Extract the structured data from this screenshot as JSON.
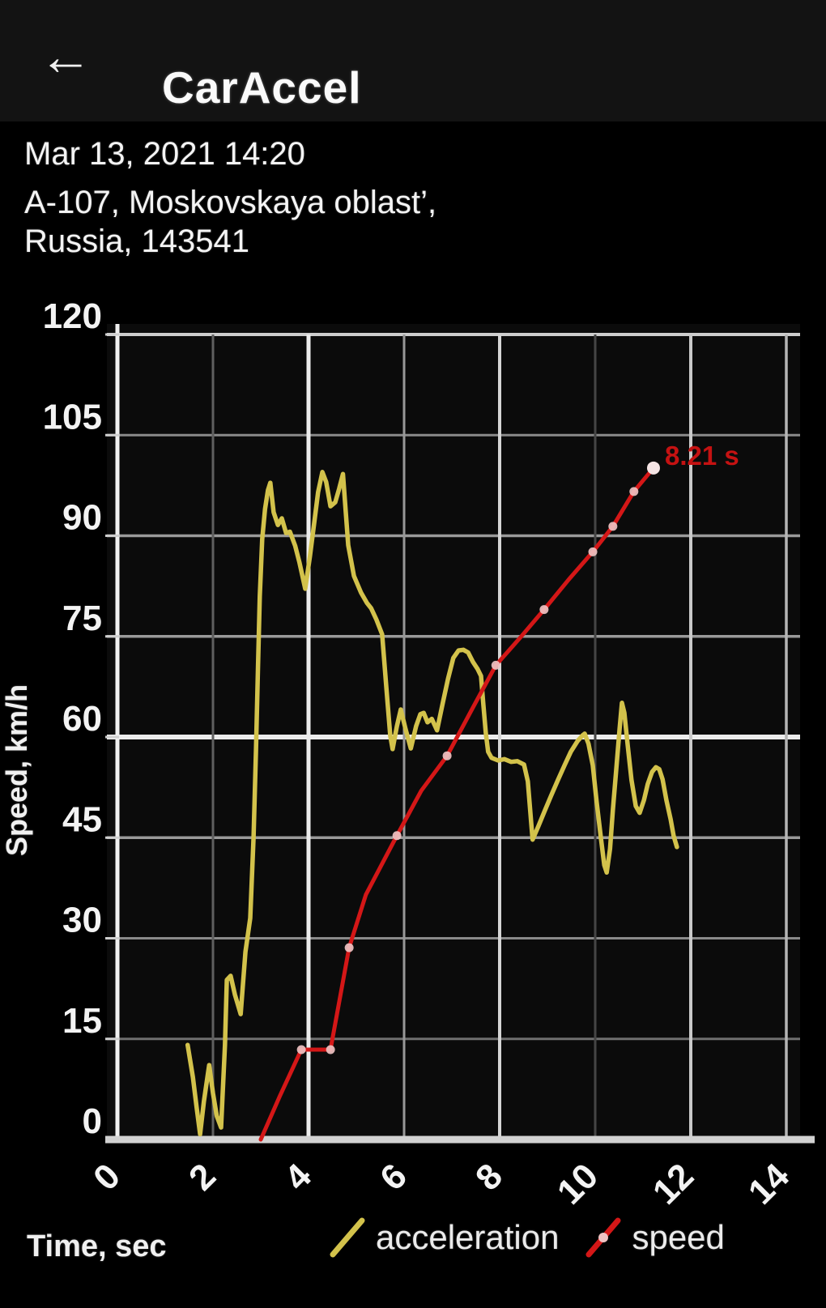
{
  "app_bar": {
    "title": "CarAccel",
    "back_icon": "←"
  },
  "session": {
    "datetime": "Mar 13, 2021 14:20",
    "address_line1": "A-107, Moskovskaya oblast’,",
    "address_line2": "Russia, 143541"
  },
  "chart_data": {
    "type": "line",
    "xlabel": "Time, sec",
    "ylabel": "Speed, km/h",
    "xlim": [
      0,
      14.6
    ],
    "ylim": [
      0,
      121.5
    ],
    "x_ticks": [
      0,
      2,
      4,
      6,
      8,
      10,
      12,
      14
    ],
    "y_ticks": [
      0,
      15,
      30,
      45,
      60,
      75,
      90,
      105,
      120
    ],
    "grid": true,
    "legend_position": "bottom",
    "annotation": {
      "text": "8.21 s",
      "t": 11.22,
      "v": 100.1,
      "color": "#c51212"
    },
    "series": [
      {
        "name": "acceleration",
        "color": "#d3c24b",
        "points": [
          [
            1.47,
            14.1
          ],
          [
            1.58,
            9.3
          ],
          [
            1.66,
            4.7
          ],
          [
            1.73,
            0.8
          ],
          [
            1.81,
            5.7
          ],
          [
            1.92,
            11.1
          ],
          [
            2.0,
            6.9
          ],
          [
            2.08,
            3.5
          ],
          [
            2.17,
            1.8
          ],
          [
            2.25,
            14.1
          ],
          [
            2.29,
            23.8
          ],
          [
            2.37,
            24.4
          ],
          [
            2.46,
            21.6
          ],
          [
            2.58,
            18.7
          ],
          [
            2.68,
            28.0
          ],
          [
            2.78,
            33.0
          ],
          [
            2.85,
            45.0
          ],
          [
            2.9,
            58.0
          ],
          [
            2.94,
            70.0
          ],
          [
            2.98,
            81.0
          ],
          [
            3.03,
            89.5
          ],
          [
            3.09,
            94.0
          ],
          [
            3.15,
            96.8
          ],
          [
            3.2,
            97.9
          ],
          [
            3.27,
            93.5
          ],
          [
            3.36,
            91.6
          ],
          [
            3.44,
            92.6
          ],
          [
            3.53,
            90.4
          ],
          [
            3.61,
            90.6
          ],
          [
            3.72,
            88.5
          ],
          [
            3.81,
            86.0
          ],
          [
            3.93,
            82.1
          ],
          [
            4.03,
            87.0
          ],
          [
            4.12,
            92.0
          ],
          [
            4.2,
            96.5
          ],
          [
            4.29,
            99.5
          ],
          [
            4.37,
            98.0
          ],
          [
            4.46,
            94.4
          ],
          [
            4.56,
            95.0
          ],
          [
            4.64,
            97.0
          ],
          [
            4.72,
            99.2
          ],
          [
            4.83,
            88.6
          ],
          [
            4.95,
            84.0
          ],
          [
            5.1,
            81.5
          ],
          [
            5.22,
            80.0
          ],
          [
            5.31,
            79.2
          ],
          [
            5.42,
            77.5
          ],
          [
            5.54,
            75.3
          ],
          [
            5.63,
            67.2
          ],
          [
            5.71,
            60.2
          ],
          [
            5.76,
            58.2
          ],
          [
            5.85,
            61.6
          ],
          [
            5.93,
            64.1
          ],
          [
            6.03,
            61.2
          ],
          [
            6.14,
            58.3
          ],
          [
            6.25,
            61.6
          ],
          [
            6.34,
            63.4
          ],
          [
            6.41,
            63.6
          ],
          [
            6.49,
            62.2
          ],
          [
            6.58,
            62.7
          ],
          [
            6.69,
            61.0
          ],
          [
            6.81,
            65.1
          ],
          [
            6.92,
            68.7
          ],
          [
            7.03,
            71.8
          ],
          [
            7.14,
            72.9
          ],
          [
            7.24,
            73.0
          ],
          [
            7.34,
            72.6
          ],
          [
            7.44,
            71.2
          ],
          [
            7.54,
            70.1
          ],
          [
            7.61,
            69.1
          ],
          [
            7.66,
            64.8
          ],
          [
            7.71,
            60.6
          ],
          [
            7.76,
            57.8
          ],
          [
            7.83,
            56.9
          ],
          [
            7.97,
            56.5
          ],
          [
            8.1,
            56.7
          ],
          [
            8.24,
            56.3
          ],
          [
            8.37,
            56.4
          ],
          [
            8.51,
            55.9
          ],
          [
            8.59,
            53.4
          ],
          [
            8.66,
            47.3
          ],
          [
            8.69,
            44.7
          ],
          [
            8.81,
            46.7
          ],
          [
            8.95,
            49.1
          ],
          [
            9.08,
            51.3
          ],
          [
            9.22,
            53.6
          ],
          [
            9.36,
            55.8
          ],
          [
            9.49,
            57.8
          ],
          [
            9.63,
            59.4
          ],
          [
            9.73,
            60.2
          ],
          [
            9.78,
            60.5
          ],
          [
            9.86,
            59.0
          ],
          [
            9.95,
            55.8
          ],
          [
            10.03,
            50.3
          ],
          [
            10.12,
            44.9
          ],
          [
            10.19,
            40.9
          ],
          [
            10.24,
            39.8
          ],
          [
            10.31,
            43.3
          ],
          [
            10.37,
            49.1
          ],
          [
            10.44,
            55.2
          ],
          [
            10.51,
            61.2
          ],
          [
            10.56,
            65.1
          ],
          [
            10.61,
            63.6
          ],
          [
            10.68,
            58.8
          ],
          [
            10.76,
            53.6
          ],
          [
            10.85,
            49.7
          ],
          [
            10.93,
            48.7
          ],
          [
            11.02,
            50.6
          ],
          [
            11.1,
            53.0
          ],
          [
            11.19,
            54.8
          ],
          [
            11.27,
            55.5
          ],
          [
            11.34,
            55.2
          ],
          [
            11.41,
            53.7
          ],
          [
            11.49,
            50.6
          ],
          [
            11.58,
            47.7
          ],
          [
            11.64,
            45.3
          ],
          [
            11.71,
            43.6
          ]
        ]
      },
      {
        "name": "speed",
        "color": "#d41717",
        "marker_color": "#efc2c2",
        "endpoint_color": "#f5e4e4",
        "points": [
          [
            3.0,
            0.0
          ],
          [
            3.4,
            6.5
          ],
          [
            3.85,
            13.4
          ],
          [
            4.46,
            13.4
          ],
          [
            4.85,
            28.6
          ],
          [
            5.2,
            36.5
          ],
          [
            5.85,
            45.3
          ],
          [
            6.36,
            52.0
          ],
          [
            6.9,
            57.2
          ],
          [
            7.45,
            64.5
          ],
          [
            7.92,
            70.7
          ],
          [
            8.44,
            74.9
          ],
          [
            8.93,
            79.0
          ],
          [
            9.45,
            83.5
          ],
          [
            9.95,
            87.6
          ],
          [
            10.37,
            91.4
          ],
          [
            10.81,
            96.6
          ],
          [
            11.22,
            100.1
          ]
        ],
        "markers": [
          [
            3.85,
            13.4
          ],
          [
            4.46,
            13.4
          ],
          [
            4.85,
            28.6
          ],
          [
            5.85,
            45.3
          ],
          [
            6.9,
            57.2
          ],
          [
            7.92,
            70.7
          ],
          [
            8.93,
            79.0
          ],
          [
            9.95,
            87.6
          ],
          [
            10.37,
            91.4
          ],
          [
            10.81,
            96.6
          ]
        ],
        "endpoint": [
          11.22,
          100.1
        ]
      }
    ]
  },
  "colors": {
    "background": "#000000",
    "app_bar": "#131313",
    "plot_background": "#0b0b0b",
    "grid": "#9a9a9a",
    "grid_bright": "#ececec",
    "axis": "#f0f0f0",
    "tick_text": "#f3f3f3"
  }
}
